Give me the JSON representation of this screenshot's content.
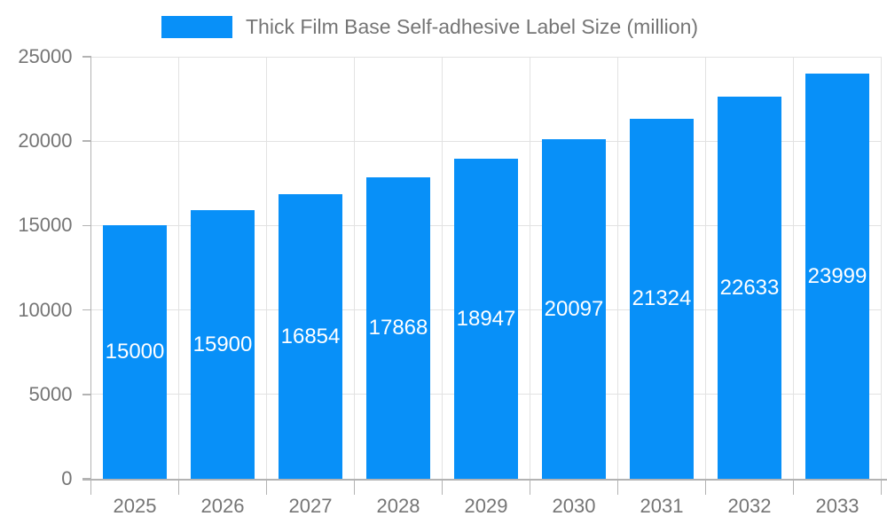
{
  "legend": {
    "label": "Thick Film Base Self-adhesive Label Size (million)"
  },
  "colors": {
    "bar": "#0890f8",
    "grid": "#e2e2e2",
    "axis": "#b3b3b3",
    "text": "#757575",
    "value_label": "#ffffff",
    "background": "#ffffff"
  },
  "chart_data": {
    "type": "bar",
    "title": "Thick Film Base Self-adhesive Label Size (million)",
    "categories": [
      "2025",
      "2026",
      "2027",
      "2028",
      "2029",
      "2030",
      "2031",
      "2032",
      "2033"
    ],
    "series": [
      {
        "name": "Thick Film Base Self-adhesive Label Size (million)",
        "values": [
          15000,
          15900,
          16854,
          17868,
          18947,
          20097,
          21324,
          22633,
          23999
        ]
      }
    ],
    "xlabel": "",
    "ylabel": "",
    "ylim": [
      0,
      25000
    ],
    "yticks": [
      0,
      5000,
      10000,
      15000,
      20000,
      25000
    ],
    "grid": true,
    "legend_position": "top",
    "value_labels": "inside-center"
  }
}
